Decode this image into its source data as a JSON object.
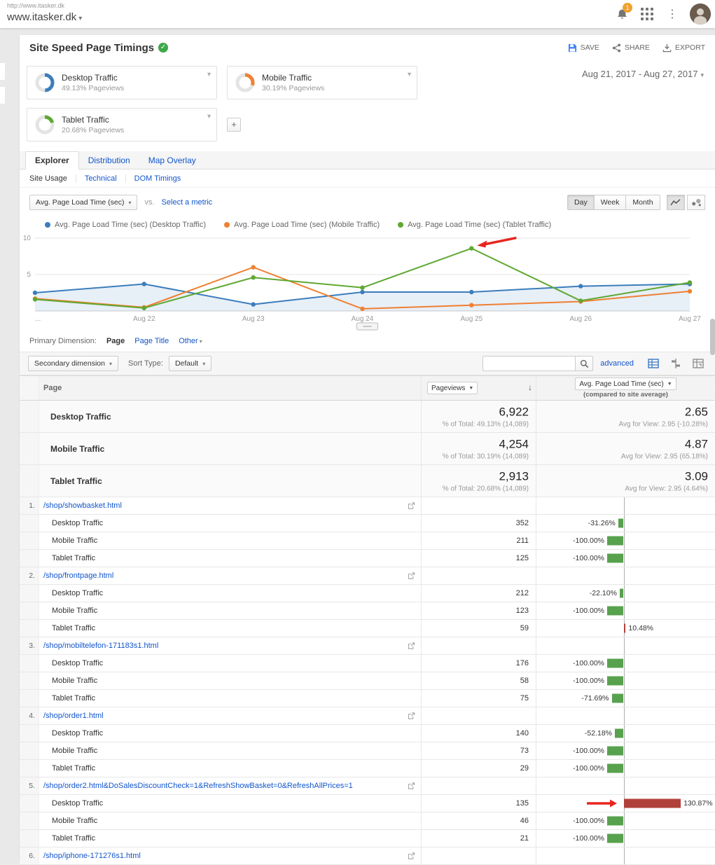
{
  "topbar": {
    "url": "http://www.itasker.dk",
    "account": "www.itasker.dk",
    "notifications": "1"
  },
  "header": {
    "title": "Site Speed Page Timings",
    "save": "SAVE",
    "share": "SHARE",
    "export": "EXPORT"
  },
  "date_range": "Aug 21, 2017 - Aug 27, 2017",
  "segments": [
    {
      "name": "Desktop Traffic",
      "detail": "49.13% Pageviews",
      "pct": 49.13,
      "color": "#3c7dbc"
    },
    {
      "name": "Mobile Traffic",
      "detail": "30.19% Pageviews",
      "pct": 30.19,
      "color": "#ef8032"
    },
    {
      "name": "Tablet Traffic",
      "detail": "20.68% Pageviews",
      "pct": 20.68,
      "color": "#5fa832"
    }
  ],
  "add_segment": "+",
  "tabs": {
    "explorer": "Explorer",
    "distribution": "Distribution",
    "map_overlay": "Map Overlay"
  },
  "subtabs": {
    "site_usage": "Site Usage",
    "technical": "Technical",
    "dom_timings": "DOM Timings"
  },
  "metric_bar": {
    "metric_select": "Avg. Page Load Time (sec)",
    "vs": "vs.",
    "select_metric": "Select a metric",
    "day": "Day",
    "week": "Week",
    "month": "Month"
  },
  "chart_data": {
    "type": "line",
    "x": [
      "...",
      "Aug 22",
      "Aug 23",
      "Aug 24",
      "Aug 25",
      "Aug 26",
      "Aug 27"
    ],
    "ylim": [
      0,
      10
    ],
    "yticks": [
      5,
      10
    ],
    "series": [
      {
        "name": "Avg. Page Load Time (sec) (Desktop Traffic)",
        "color": "#3c7dbc",
        "area": true,
        "values": [
          2.5,
          3.7,
          0.9,
          2.6,
          2.6,
          3.4,
          3.7
        ]
      },
      {
        "name": "Avg. Page Load Time (sec) (Mobile Traffic)",
        "color": "#ef8032",
        "area": false,
        "values": [
          1.7,
          0.5,
          6.0,
          0.3,
          0.8,
          1.3,
          2.7
        ]
      },
      {
        "name": "Avg. Page Load Time (sec) (Tablet Traffic)",
        "color": "#5fa832",
        "area": false,
        "values": [
          1.6,
          0.4,
          4.6,
          3.2,
          8.6,
          1.4,
          3.9
        ]
      }
    ],
    "annotation_arrow": {
      "series": 2,
      "point": 4
    }
  },
  "dimension_bar": {
    "label": "Primary Dimension:",
    "page": "Page",
    "page_title": "Page Title",
    "other": "Other"
  },
  "toolbar": {
    "secondary_dimension": "Secondary dimension",
    "sort_type_label": "Sort Type:",
    "sort_type_value": "Default",
    "search_value": "",
    "advanced": "advanced"
  },
  "table": {
    "headers": {
      "page": "Page",
      "pageviews": "Pageviews",
      "metric": "Avg. Page Load Time (sec)",
      "metric_note": "(compared to site average)"
    },
    "summary_rows": [
      {
        "name": "Desktop Traffic",
        "pageviews": "6,922",
        "pageviews_note": "% of Total: 49.13% (14,089)",
        "metric": "2.65",
        "metric_note": "Avg for View: 2.95 (-10.28%)"
      },
      {
        "name": "Mobile Traffic",
        "pageviews": "4,254",
        "pageviews_note": "% of Total: 30.19% (14,089)",
        "metric": "4.87",
        "metric_note": "Avg for View: 2.95 (65.18%)"
      },
      {
        "name": "Tablet Traffic",
        "pageviews": "2,913",
        "pageviews_note": "% of Total: 20.68% (14,089)",
        "metric": "3.09",
        "metric_note": "Avg for View: 2.95 (4.64%)"
      }
    ],
    "page_groups": [
      {
        "num": "1.",
        "url": "/shop/showbasket.html",
        "segments": [
          {
            "name": "Desktop Traffic",
            "pageviews": "352",
            "pct": -31.26,
            "pct_label": "-31.26%"
          },
          {
            "name": "Mobile Traffic",
            "pageviews": "211",
            "pct": -100,
            "pct_label": "-100.00%"
          },
          {
            "name": "Tablet Traffic",
            "pageviews": "125",
            "pct": -100,
            "pct_label": "-100.00%"
          }
        ]
      },
      {
        "num": "2.",
        "url": "/shop/frontpage.html",
        "segments": [
          {
            "name": "Desktop Traffic",
            "pageviews": "212",
            "pct": -22.1,
            "pct_label": "-22.10%"
          },
          {
            "name": "Mobile Traffic",
            "pageviews": "123",
            "pct": -100,
            "pct_label": "-100.00%"
          },
          {
            "name": "Tablet Traffic",
            "pageviews": "59",
            "pct": 10.48,
            "pct_label": "10.48%"
          }
        ]
      },
      {
        "num": "3.",
        "url": "/shop/mobiltelefon-171183s1.html",
        "segments": [
          {
            "name": "Desktop Traffic",
            "pageviews": "176",
            "pct": -100,
            "pct_label": "-100.00%"
          },
          {
            "name": "Mobile Traffic",
            "pageviews": "58",
            "pct": -100,
            "pct_label": "-100.00%"
          },
          {
            "name": "Tablet Traffic",
            "pageviews": "75",
            "pct": -71.69,
            "pct_label": "-71.69%"
          }
        ]
      },
      {
        "num": "4.",
        "url": "/shop/order1.html",
        "segments": [
          {
            "name": "Desktop Traffic",
            "pageviews": "140",
            "pct": -52.18,
            "pct_label": "-52.18%"
          },
          {
            "name": "Mobile Traffic",
            "pageviews": "73",
            "pct": -100,
            "pct_label": "-100.00%"
          },
          {
            "name": "Tablet Traffic",
            "pageviews": "29",
            "pct": -100,
            "pct_label": "-100.00%"
          }
        ]
      },
      {
        "num": "5.",
        "url": "/shop/order2.html&DoSalesDiscountCheck=1&RefreshShowBasket=0&RefreshAllPrices=1",
        "segments": [
          {
            "name": "Desktop Traffic",
            "pageviews": "135",
            "pct": 130.87,
            "pct_label": "130.87%",
            "arrow": true
          },
          {
            "name": "Mobile Traffic",
            "pageviews": "46",
            "pct": -100,
            "pct_label": "-100.00%"
          },
          {
            "name": "Tablet Traffic",
            "pageviews": "21",
            "pct": -100,
            "pct_label": "-100.00%"
          }
        ]
      },
      {
        "num": "6.",
        "url": "/shop/iphone-171276s1.html",
        "segments": []
      }
    ]
  },
  "colors": {
    "positive_bar": "#b0413a",
    "negative_bar": "#58a14e",
    "annotation": "#e8251f",
    "accent_orange": "#f0a12c"
  }
}
